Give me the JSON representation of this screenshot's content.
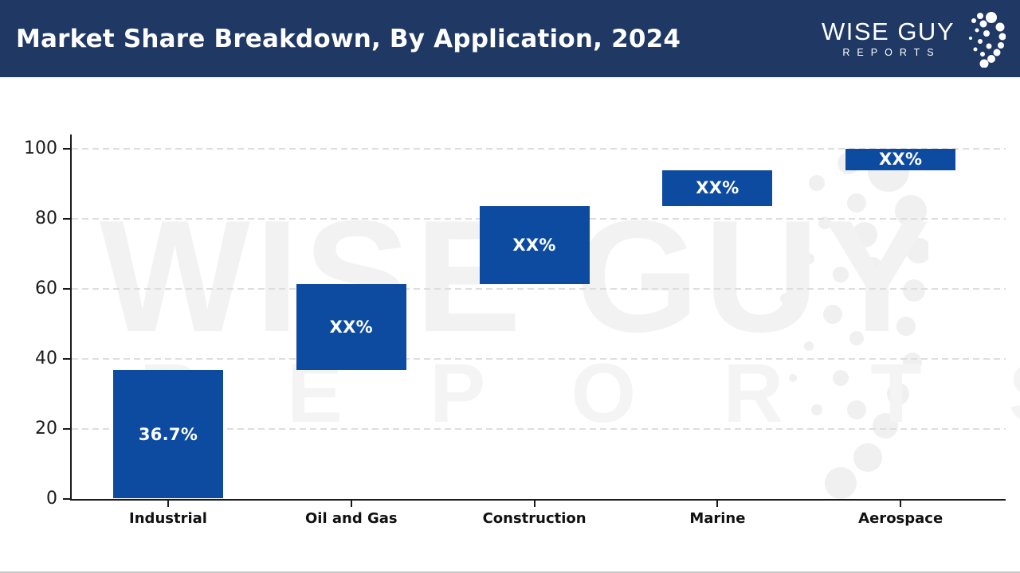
{
  "header": {
    "title": "Market Share Breakdown, By Application, 2024",
    "bg_color": "#1f3864",
    "logo": {
      "line1": "WISE GUY",
      "line2": "REPORTS"
    }
  },
  "watermark": {
    "line1": "WISE GUY",
    "line2": "R E P O R T S"
  },
  "chart_data": {
    "type": "bar",
    "subtype": "waterfall",
    "title": "Market Share Breakdown, By Application, 2024",
    "xlabel": "",
    "ylabel": "",
    "categories": [
      "Industrial",
      "Oil and Gas",
      "Construction",
      "Marine",
      "Aerospace"
    ],
    "segments": [
      {
        "category": "Industrial",
        "start": 0,
        "end": 36.7,
        "label": "36.7%"
      },
      {
        "category": "Oil and Gas",
        "start": 36.7,
        "end": 61.3,
        "label": "XX%"
      },
      {
        "category": "Construction",
        "start": 61.3,
        "end": 83.5,
        "label": "XX%"
      },
      {
        "category": "Marine",
        "start": 83.5,
        "end": 93.8,
        "label": "XX%"
      },
      {
        "category": "Aerospace",
        "start": 93.8,
        "end": 100,
        "label": "XX%"
      }
    ],
    "yticks": [
      0,
      20,
      40,
      60,
      80,
      100
    ],
    "ylim": [
      0,
      104
    ],
    "grid": "horizontal-dashed",
    "legend": "none",
    "bar_color": "#0d4ba1",
    "bar_label_color": "#ffffff",
    "axis_color": "#1a1a1a",
    "gridline_color": "#dedede"
  }
}
